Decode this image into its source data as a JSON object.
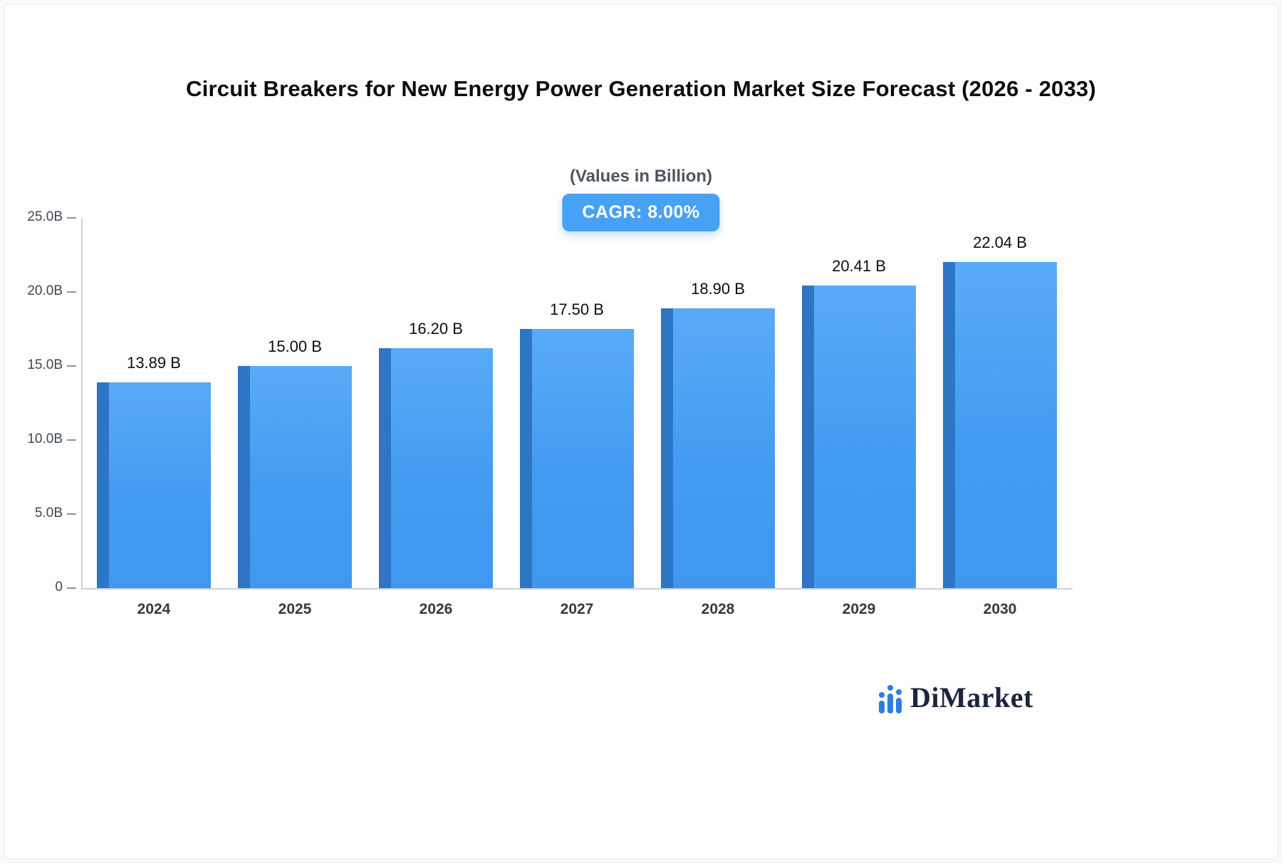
{
  "header": {
    "title": "Circuit Breakers for New Energy Power Generation Market Size Forecast (2026 - 2033)",
    "subtitle": "(Values in Billion)",
    "cagr_badge": "CAGR: 8.00%"
  },
  "chart_data": {
    "type": "bar",
    "title": "Circuit Breakers for New Energy Power Generation Market Size Forecast (2026 - 2033)",
    "subtitle": "(Values in Billion)",
    "annotation": "CAGR: 8.00%",
    "categories": [
      "2024",
      "2025",
      "2026",
      "2027",
      "2028",
      "2029",
      "2030"
    ],
    "values": [
      13.89,
      15.0,
      16.2,
      17.5,
      18.9,
      20.41,
      22.04
    ],
    "value_labels": [
      "13.89 B",
      "15.00 B",
      "16.20 B",
      "17.50 B",
      "18.90 B",
      "20.41 B",
      "22.04 B"
    ],
    "xlabel": "",
    "ylabel": "",
    "ylim": [
      0,
      25
    ],
    "y_ticks": [
      {
        "value": 25,
        "label": "25.0B"
      },
      {
        "value": 20,
        "label": "20.0B"
      },
      {
        "value": 15,
        "label": "15.0B"
      },
      {
        "value": 10,
        "label": "10.0B"
      },
      {
        "value": 5,
        "label": "5.0B"
      },
      {
        "value": 0,
        "label": "0"
      }
    ],
    "grid": false,
    "legend": false,
    "bar_color": "#47a0f4",
    "bar_side_color": "#2e76c4",
    "badge_color": "#47a1f5"
  },
  "footer": {
    "brand": "DiMarket"
  }
}
